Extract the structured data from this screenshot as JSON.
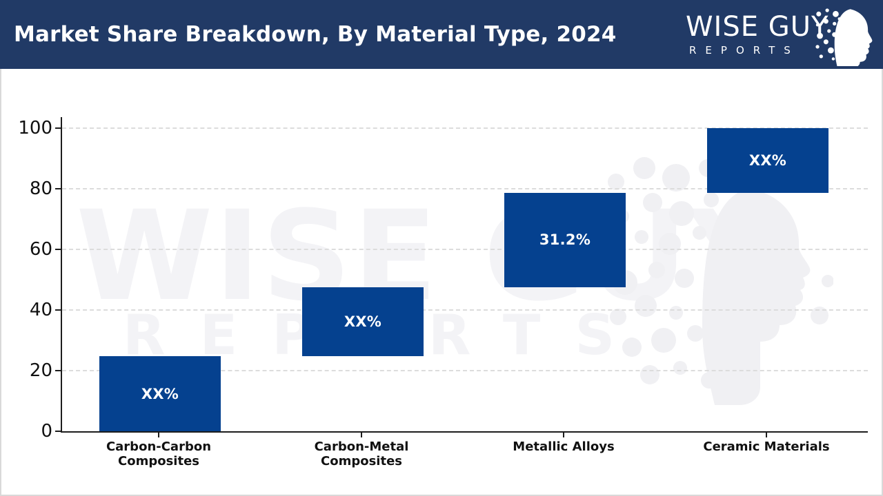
{
  "header": {
    "title": "Market Share Breakdown, By Material Type, 2024",
    "logo": {
      "wordmark": "WISE GUY",
      "subtext": "REPORTS"
    }
  },
  "watermark": {
    "wordmark": "WISE GUY",
    "subtext": "REPORTS"
  },
  "chart_data": {
    "type": "bar",
    "variant": "waterfall",
    "title": "Market Share Breakdown, By Material Type, 2024",
    "categories": [
      "Carbon-Carbon\nComposites",
      "Carbon-Metal\nComposites",
      "Metallic Alloys",
      "Ceramic Materials"
    ],
    "segments": [
      {
        "category": "Carbon-Carbon Composites",
        "start": 0,
        "end": 24.7,
        "value": 24.7,
        "label": "XX%"
      },
      {
        "category": "Carbon-Metal Composites",
        "start": 24.7,
        "end": 47.5,
        "value": 22.8,
        "label": "XX%"
      },
      {
        "category": "Metallic Alloys",
        "start": 47.5,
        "end": 78.7,
        "value": 31.2,
        "label": "31.2%"
      },
      {
        "category": "Ceramic Materials",
        "start": 78.7,
        "end": 100,
        "value": 21.3,
        "label": "XX%"
      }
    ],
    "xlabel": "",
    "ylabel": "",
    "yticks": [
      0,
      20,
      40,
      60,
      80,
      100
    ],
    "ylim": [
      0,
      104
    ],
    "grid": "dashed-horizontal",
    "legend": "none",
    "bar_color": "#05418f",
    "bar_label_color": "#ffffff",
    "axis_color": "#1c1c1c",
    "gridline_color": "#dcdcdc",
    "header_color": "#213a66",
    "watermark_color": "#f3f3f6"
  }
}
